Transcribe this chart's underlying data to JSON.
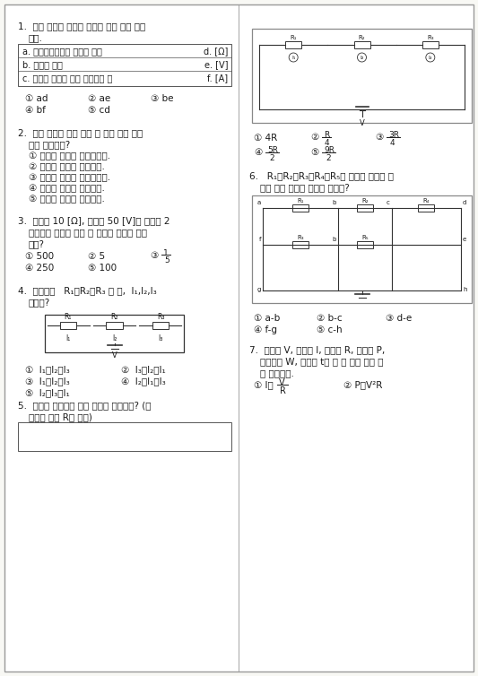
{
  "bg_color": "#f0f0ea",
  "text_color": "#1a1a1a",
  "page_bg": "#f8f8f4",
  "line_color": "#444444",
  "q1_table_rows": [
    [
      "a. 전원으로부터의 전기적 압력",
      "d. [Ω]"
    ],
    [
      "b. 전자의 흐름",
      "e. [V]"
    ],
    [
      "c. 전류가 흐르는 것을 방해하는 것",
      "f. [A]"
    ]
  ],
  "q1_text": "1.  다음 보기가 바르게 연결된 것을 모두 고르\n   시오.",
  "q1_choices1": [
    "① ad",
    "② ae",
    "③ be"
  ],
  "q1_choices2": [
    "④ bf",
    "⑤ cd"
  ],
  "q2_text": "2.  옴의 법칙에 대한 설명 중 틀린 것을 있는\n   대로 고른다면?",
  "q2_items": [
    "① 저항은 전압과 반비례한다.",
    "② 저항은 전압과 비례한다.",
    "③ 저항은 전류와 반비례한다.",
    "④ 저항은 전류와 비례한다.",
    "⑤ 전류와 전압과 비례한다."
  ],
  "q3_text": "3.  저항이 10 [Ω], 전압이 50 [V]인 회로에 2\n   시간동안 전기가 흐를 때 전류는 얼마나 흐르\n   는가?",
  "q3_choices1": [
    "① 500",
    "② 5"
  ],
  "q3_choices2": [
    "④ 250",
    "⑤ 100"
  ],
  "q4_text": "4.  그림에서   R₁＞R₂＞R₃ 일 때,  I₁,I₂,I₃\n   관계는?",
  "q4_choices1": [
    "①  I₁＞I₂＞I₃",
    "②  I₃＞I₂＞I₁"
  ],
  "q4_choices2": [
    "③  I₁＝I₂＝I₃",
    "④  I₂＞I₁＞I₃"
  ],
  "q4_choices3": [
    "⑤  I₂＞I₃＞I₁"
  ],
  "q5_text": "5.  그림의 회로에서 합성 저항은 얼마인가? (저\n   항값은 각각 R로 같음)",
  "q5_choices1": [
    "① 4R"
  ],
  "q5_choices2": [
    "⑤"
  ],
  "q6_text": "6.   R₁＞R₂＞R₃＞R₄＞R₅의 관계게 성립될 때\n   가장 적은 전류가 흐르는 부분은?",
  "q6_choices1": [
    "① a-b",
    "② b-c",
    "③ d-e"
  ],
  "q6_choices2": [
    "④ f-g",
    "⑤ c-h"
  ],
  "q7_text": "7.  전압을 V, 전류를 I, 저항을 R, 전력을 P,\n   전력량을 W, 시간을 t라 할 때 바른 것을 모\n   두 고르시오."
}
